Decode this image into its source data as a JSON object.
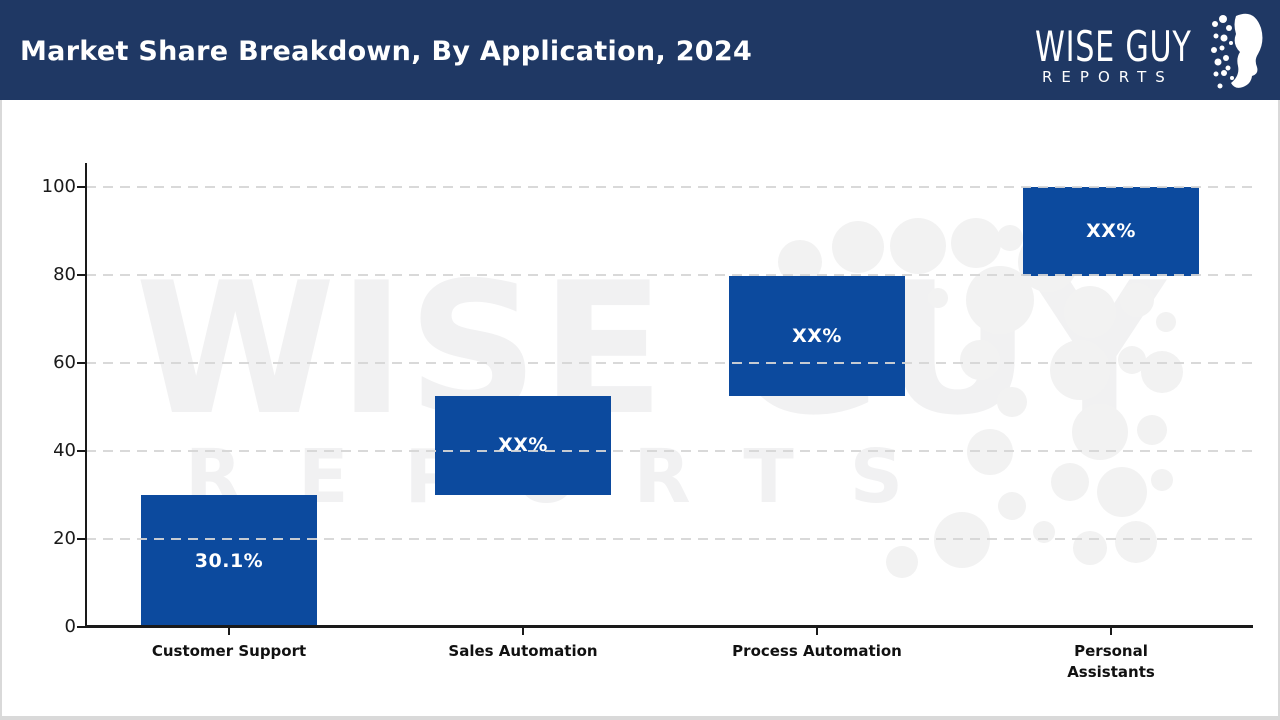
{
  "header": {
    "title": "Market Share Breakdown, By Application, 2024",
    "logo": {
      "line1": "WISE GUY",
      "line2": "REPORTS"
    }
  },
  "watermark": {
    "line1": "WISE GUY",
    "line2": "REPORTS"
  },
  "chart_data": {
    "type": "bar",
    "subtype": "waterfall",
    "title": "Market Share Breakdown, By Application, 2024",
    "xlabel": "",
    "ylabel": "",
    "ylim": [
      0,
      105
    ],
    "y_ticks": [
      0,
      20,
      40,
      60,
      80,
      100
    ],
    "grid": true,
    "legend": false,
    "categories": [
      "Customer Support",
      "Sales Automation",
      "Process Automation",
      "Personal Assistants"
    ],
    "category_lines": [
      [
        "Customer Support"
      ],
      [
        "Sales Automation"
      ],
      [
        "Process Automation"
      ],
      [
        "Personal",
        "Assistants"
      ]
    ],
    "segments": [
      {
        "category": "Customer Support",
        "start": 0,
        "end": 30.1,
        "value": 30.1,
        "label": "30.1%"
      },
      {
        "category": "Sales Automation",
        "start": 30.1,
        "end": 52.5,
        "value": 22.4,
        "label": "XX%"
      },
      {
        "category": "Process Automation",
        "start": 52.5,
        "end": 79.8,
        "value": 27.3,
        "label": "XX%"
      },
      {
        "category": "Personal Assistants",
        "start": 79.8,
        "end": 100,
        "value": 20.2,
        "label": "XX%"
      }
    ],
    "bar_color": "#0c4a9e",
    "bar_label_color": "#ffffff"
  },
  "colors": {
    "header_bg": "#1f3864",
    "title_text": "#ffffff",
    "axis": "#1a1a1a",
    "gridline": "#d6d6d6",
    "watermark": "#f1f1f2",
    "page_border": "#d9d9d9"
  }
}
